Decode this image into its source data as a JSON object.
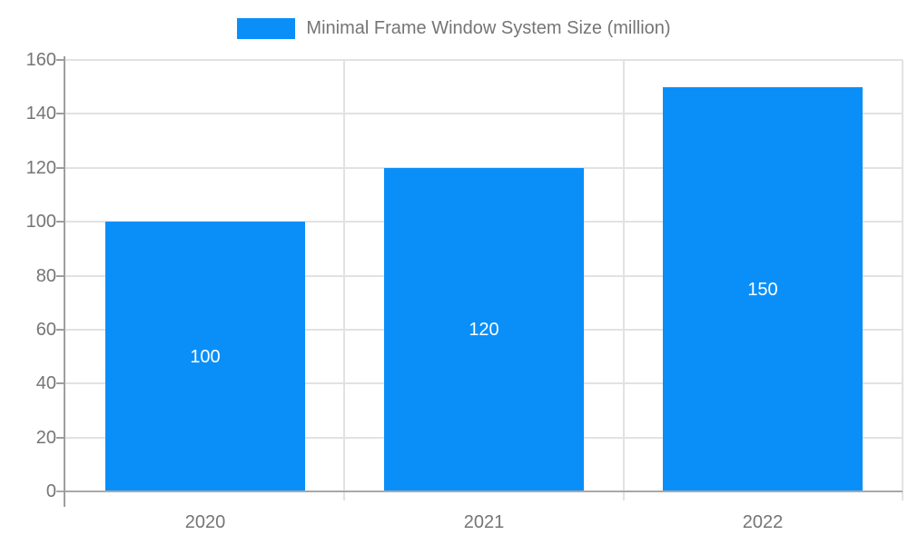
{
  "chart_data": {
    "type": "bar",
    "title": "",
    "legend": "Minimal Frame Window System Size (million)",
    "legend_position": "top",
    "categories": [
      "2020",
      "2021",
      "2022"
    ],
    "values": [
      100,
      120,
      150
    ],
    "data_labels": [
      "100",
      "120",
      "150"
    ],
    "xlabel": "",
    "ylabel": "",
    "ylim": [
      0,
      160
    ],
    "y_ticks": [
      0,
      20,
      40,
      60,
      80,
      100,
      120,
      140,
      160
    ],
    "grid": true
  },
  "colors": {
    "bar": "#0a8ff9",
    "grid": "#e2e2e2",
    "axis": "#9e9e9e",
    "x_axis": "#a8a8a8",
    "tick_text": "#757575",
    "value_label": "#ffffff",
    "background": "#ffffff"
  }
}
